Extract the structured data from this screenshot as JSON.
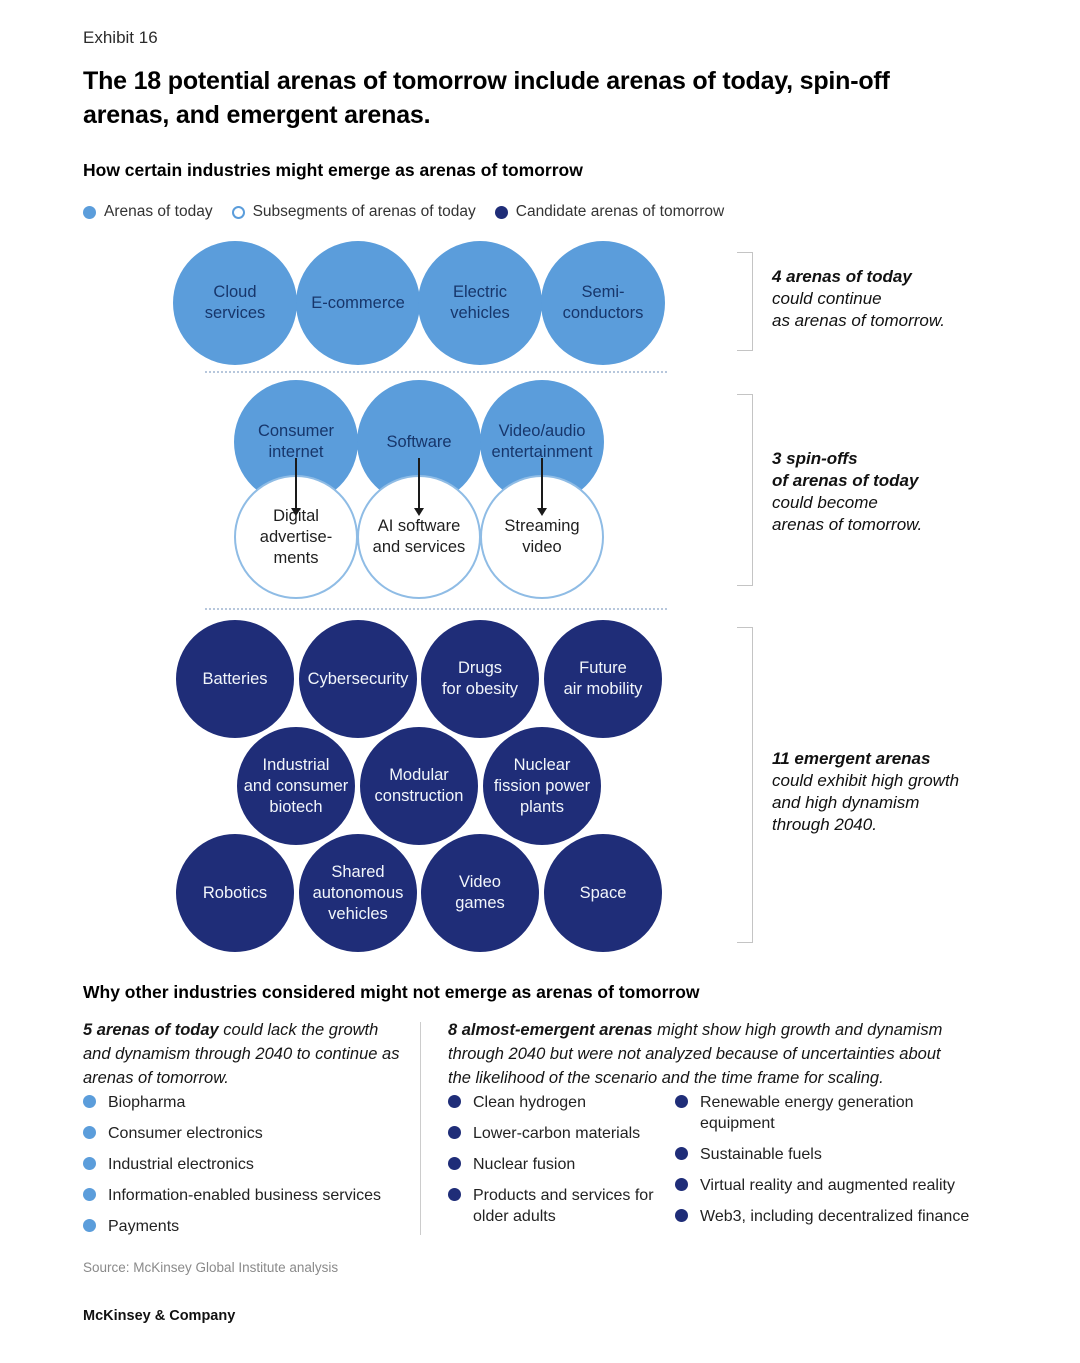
{
  "exhibit_label": "Exhibit 16",
  "title": "The 18 potential arenas of tomorrow include arenas of today, spin-off arenas, and emergent arenas.",
  "section1": {
    "heading": "How certain industries might emerge as arenas of tomorrow",
    "legend": [
      {
        "label": "Arenas of today"
      },
      {
        "label": "Subsegments of arenas of today"
      },
      {
        "label": "Candidate arenas of tomorrow"
      }
    ],
    "arenas_of_today": {
      "circles": [
        [
          "Cloud",
          "services"
        ],
        [
          "E-commerce"
        ],
        [
          "Electric",
          "vehicles"
        ],
        [
          "Semi-",
          "conductors"
        ]
      ],
      "annotation": {
        "bold_lines": [
          "4 arenas of today"
        ],
        "lines": [
          "could continue",
          "as arenas of tomorrow."
        ]
      }
    },
    "spin_offs": {
      "parents": [
        [
          "Consumer",
          "internet"
        ],
        [
          "Software"
        ],
        [
          "Video/audio",
          "entertainment"
        ]
      ],
      "children": [
        [
          "Digital",
          "advertise-",
          "ments"
        ],
        [
          "AI software",
          "and services"
        ],
        [
          "Streaming",
          "video"
        ]
      ],
      "annotation": {
        "bold_lines": [
          "3 spin-offs",
          "of arenas of today"
        ],
        "lines": [
          "could become",
          "arenas of tomorrow."
        ]
      }
    },
    "emergent": {
      "rows": [
        [
          [
            "Batteries"
          ],
          [
            "Cybersecurity"
          ],
          [
            "Drugs",
            "for obesity"
          ],
          [
            "Future",
            "air mobility"
          ]
        ],
        [
          [
            "Industrial",
            "and consumer",
            "biotech"
          ],
          [
            "Modular",
            "construction"
          ],
          [
            "Nuclear",
            "fission power",
            "plants"
          ]
        ],
        [
          [
            "Robotics"
          ],
          [
            "Shared",
            "autonomous",
            "vehicles"
          ],
          [
            "Video",
            "games"
          ],
          [
            "Space"
          ]
        ]
      ],
      "annotation": {
        "bold_lines": [
          "11 emergent arenas"
        ],
        "lines": [
          "could exhibit high growth",
          "and high dynamism",
          "through 2040."
        ]
      }
    }
  },
  "section2": {
    "heading": "Why other industries considered might not emerge as arenas of tomorrow",
    "left": {
      "intro_bold": "5 arenas of today",
      "intro_rest": " could lack the growth and dynamism through 2040 to continue as arenas of tomorrow.",
      "items": [
        "Biopharma",
        "Consumer electronics",
        "Industrial electronics",
        "Information-enabled business services",
        "Payments"
      ]
    },
    "right": {
      "intro_bold": "8 almost-emergent arenas",
      "intro_rest": " might show high growth and dynamism through 2040 but were not analyzed because of uncertainties about the likelihood of the scenario and the time frame for scaling.",
      "col1": [
        "Clean hydrogen",
        "Lower-carbon materials",
        "Nuclear fusion",
        "Products and services for older adults"
      ],
      "col2": [
        "Renewable energy generation equipment",
        "Sustainable fuels",
        "Virtual reality and augmented reality",
        "Web3, including decentralized finance"
      ]
    }
  },
  "source": "Source: McKinsey Global Institute analysis",
  "brand": "McKinsey & Company",
  "colors": {
    "light_blue": "#5B9DDB",
    "dark_navy": "#1F2D78",
    "outline_stroke": "#8FBCE5",
    "circle_text_on_light": "#17366B"
  }
}
